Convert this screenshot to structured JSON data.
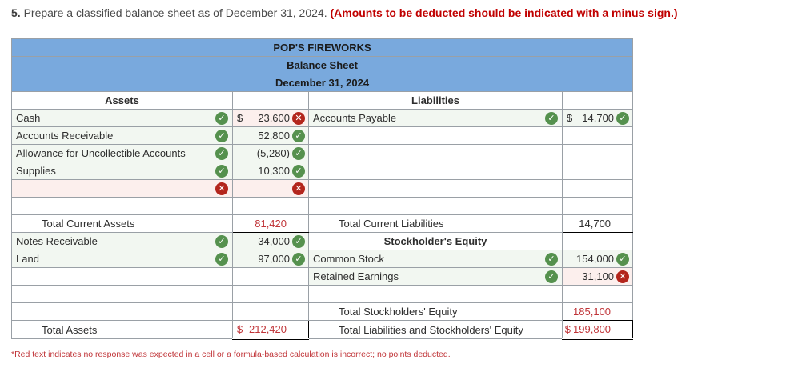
{
  "instruction": {
    "number": "5.",
    "text": "Prepare a classified balance sheet as of December 31, 2024.",
    "warning": "(Amounts to be deducted should be indicated with a minus sign.)"
  },
  "table": {
    "title_rows": [
      "POP'S FIREWORKS",
      "Balance Sheet",
      "December 31, 2024"
    ],
    "column_headers": {
      "left": "Assets",
      "right": "Liabilities"
    },
    "rows": [
      {
        "left": {
          "label": "Cash",
          "label_style": "item",
          "label_bg": "green",
          "label_icon": "check",
          "label_editable": true,
          "dollar": "$",
          "value": "23,600",
          "value_icon": "x",
          "value_bg": "pink",
          "value_color": "dark",
          "value_editable": true
        },
        "right": {
          "label": "Accounts Payable",
          "label_style": "item",
          "label_bg": "green",
          "label_icon": "check",
          "label_editable": true,
          "dollar": "$",
          "value": "14,700",
          "value_icon": "check",
          "value_bg": "green",
          "value_color": "dark",
          "value_editable": true
        }
      },
      {
        "left": {
          "label": "Accounts Receivable",
          "label_style": "item",
          "label_bg": "green",
          "label_icon": "check",
          "label_editable": true,
          "value": "52,800",
          "value_icon": "check",
          "value_bg": "green",
          "value_color": "dark",
          "value_editable": true
        },
        "right": {
          "label": "",
          "label_style": "empty",
          "label_bg": "white",
          "label_editable": true,
          "value": "",
          "value_bg": "white",
          "value_editable": true
        }
      },
      {
        "left": {
          "label": "Allowance for Uncollectible Accounts",
          "label_style": "item",
          "label_bg": "green",
          "label_icon": "check",
          "label_editable": true,
          "value": "(5,280)",
          "value_icon": "check",
          "value_bg": "green",
          "value_color": "dark",
          "value_editable": true
        },
        "right": {
          "label": "",
          "label_style": "empty",
          "label_bg": "white",
          "label_editable": true,
          "value": "",
          "value_bg": "white",
          "value_editable": true
        }
      },
      {
        "left": {
          "label": "Supplies",
          "label_style": "item",
          "label_bg": "green",
          "label_icon": "check",
          "label_editable": true,
          "value": "10,300",
          "value_icon": "check",
          "value_bg": "green",
          "value_color": "dark",
          "value_editable": true
        },
        "right": {
          "label": "",
          "label_style": "empty",
          "label_bg": "white",
          "label_editable": true,
          "value": "",
          "value_bg": "white",
          "value_editable": true
        }
      },
      {
        "left": {
          "label": "",
          "label_style": "empty",
          "label_bg": "pink",
          "label_icon": "x",
          "label_editable": true,
          "value": "",
          "value_icon": "x",
          "value_bg": "pink",
          "value_editable": true
        },
        "right": {
          "label": "",
          "label_style": "empty",
          "label_bg": "white",
          "label_editable": true,
          "value": "",
          "value_bg": "white",
          "value_editable": true
        }
      },
      {
        "left": {
          "label": "",
          "label_style": "empty",
          "label_bg": "white",
          "label_editable": true,
          "value": "",
          "value_bg": "white",
          "value_editable": true
        },
        "right": {
          "label": "",
          "label_style": "empty",
          "label_bg": "white",
          "label_editable": true,
          "value": "",
          "value_bg": "white",
          "value_editable": true
        }
      },
      {
        "left": {
          "label": "Total Current Assets",
          "label_style": "total",
          "label_bg": "white",
          "value": "81,420",
          "value_bg": "white",
          "value_color": "red",
          "value_border": "total"
        },
        "right": {
          "label": "Total Current Liabilities",
          "label_style": "total",
          "label_bg": "white",
          "value": "14,700",
          "value_bg": "white",
          "value_color": "dark",
          "value_border": "total"
        }
      },
      {
        "left": {
          "label": "Notes Receivable",
          "label_style": "item",
          "label_bg": "green",
          "label_icon": "check",
          "label_editable": true,
          "value": "34,000",
          "value_icon": "check",
          "value_bg": "green",
          "value_color": "dark",
          "value_editable": true
        },
        "right": {
          "label": "Stockholder's Equity",
          "label_style": "section",
          "label_bg": "white",
          "value": "",
          "value_bg": "white"
        }
      },
      {
        "left": {
          "label": "Land",
          "label_style": "item",
          "label_bg": "green",
          "label_icon": "check",
          "label_editable": true,
          "value": "97,000",
          "value_icon": "check",
          "value_bg": "green",
          "value_color": "dark",
          "value_editable": true
        },
        "right": {
          "label": "Common Stock",
          "label_style": "item",
          "label_bg": "green",
          "label_icon": "check",
          "label_editable": true,
          "value": "154,000",
          "value_icon": "check",
          "value_bg": "green",
          "value_color": "dark",
          "value_editable": true
        }
      },
      {
        "left": {
          "label": "",
          "label_style": "empty",
          "label_bg": "white",
          "label_editable": true,
          "value": "",
          "value_bg": "white",
          "value_editable": true
        },
        "right": {
          "label": "Retained Earnings",
          "label_style": "item",
          "label_bg": "green",
          "label_icon": "check",
          "label_editable": true,
          "value": "31,100",
          "value_icon": "x",
          "value_bg": "pink",
          "value_color": "dark",
          "value_editable": true
        }
      },
      {
        "left": {
          "label": "",
          "label_style": "empty",
          "label_bg": "white",
          "label_editable": true,
          "value": "",
          "value_bg": "white",
          "value_editable": true
        },
        "right": {
          "label": "",
          "label_style": "empty",
          "label_bg": "white",
          "label_editable": true,
          "value": "",
          "value_bg": "white",
          "value_editable": true
        }
      },
      {
        "left": {
          "label": "",
          "label_style": "empty",
          "label_bg": "white",
          "label_editable": true,
          "value": "",
          "value_bg": "white",
          "value_editable": true
        },
        "right": {
          "label": "Total Stockholders' Equity",
          "label_style": "total",
          "label_bg": "white",
          "value": "185,100",
          "value_bg": "white",
          "value_color": "red",
          "value_border": "total"
        }
      },
      {
        "left": {
          "label": "Total Assets",
          "label_style": "total",
          "label_bg": "white",
          "dollar": "$",
          "value": "212,420",
          "value_bg": "white",
          "value_color": "red",
          "value_border": "grand"
        },
        "right": {
          "label": "Total Liabilities and Stockholders' Equity",
          "label_style": "total",
          "label_bg": "white",
          "dollar": "$",
          "value": "199,800",
          "value_bg": "white",
          "value_color": "red",
          "value_border": "grand"
        }
      }
    ],
    "footnote": "*Red text indicates no response was expected in a cell or a formula-based calculation is incorrect; no points deducted."
  },
  "colors": {
    "header_blue": "#79a9dd",
    "entry_green_bg": "#f2f7f1",
    "error_pink_bg": "#fcefed",
    "check_icon_green": "#55914e",
    "x_icon_red": "#b3251c",
    "incorrect_calc_red": "#c03438",
    "warning_red": "#c00000"
  }
}
